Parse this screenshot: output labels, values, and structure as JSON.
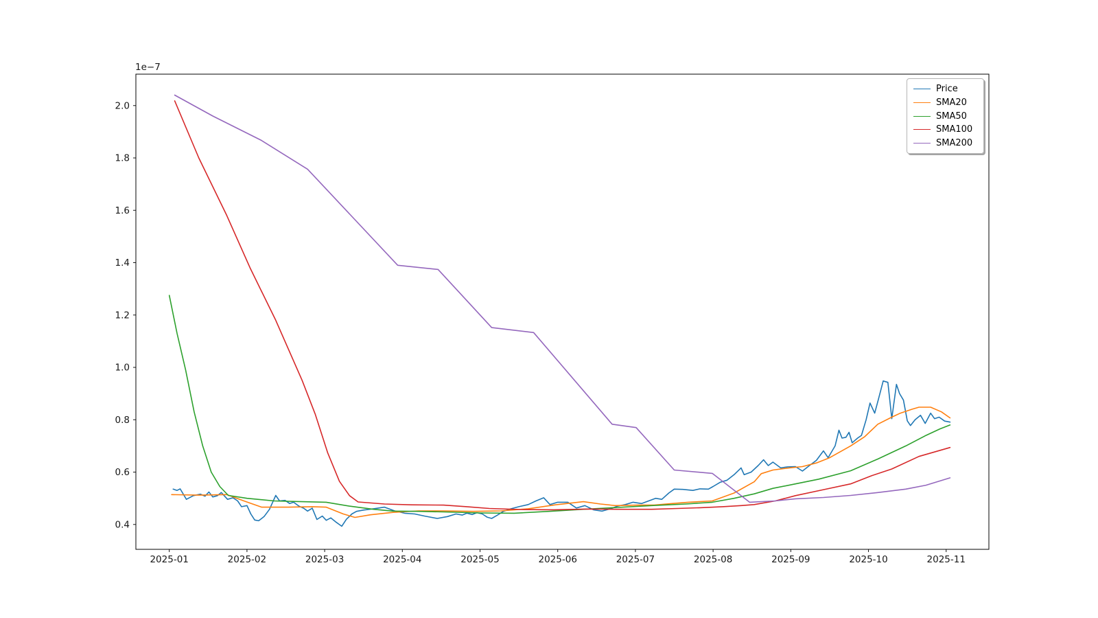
{
  "figure": {
    "background": "#ffffff"
  },
  "chart_data": {
    "type": "line",
    "title": "",
    "xlabel": "",
    "ylabel": "",
    "y_offset_label": "1e−7",
    "grid": false,
    "legend_position": "upper right",
    "x_tick_positions": [
      0,
      1,
      2,
      3,
      4,
      5,
      6,
      7,
      8,
      9,
      10
    ],
    "x_tick_labels": [
      "2025-01",
      "2025-02",
      "2025-03",
      "2025-04",
      "2025-05",
      "2025-06",
      "2025-07",
      "2025-08",
      "2025-09",
      "2025-10",
      "2025-11"
    ],
    "y_tick_values": [
      0.4,
      0.6,
      0.8,
      1.0,
      1.2,
      1.4,
      1.6,
      1.8,
      2.0
    ],
    "y_tick_labels": [
      "0.4",
      "0.6",
      "0.8",
      "1.0",
      "1.2",
      "1.4",
      "1.6",
      "1.8",
      "2.0"
    ],
    "xlim": [
      -0.43,
      10.55
    ],
    "ylim": [
      0.305,
      2.12
    ],
    "x_unit": "months since 2025-01 tick",
    "value_scale": "1e-7",
    "series": [
      {
        "name": "Price",
        "color": "#1f77b4",
        "points": [
          [
            0.05,
            0.535
          ],
          [
            0.1,
            0.53
          ],
          [
            0.14,
            0.536
          ],
          [
            0.22,
            0.496
          ],
          [
            0.31,
            0.51
          ],
          [
            0.4,
            0.516
          ],
          [
            0.46,
            0.508
          ],
          [
            0.51,
            0.524
          ],
          [
            0.56,
            0.505
          ],
          [
            0.62,
            0.51
          ],
          [
            0.67,
            0.522
          ],
          [
            0.75,
            0.496
          ],
          [
            0.82,
            0.502
          ],
          [
            0.88,
            0.49
          ],
          [
            0.93,
            0.468
          ],
          [
            1.0,
            0.472
          ],
          [
            1.05,
            0.44
          ],
          [
            1.1,
            0.417
          ],
          [
            1.15,
            0.414
          ],
          [
            1.22,
            0.43
          ],
          [
            1.29,
            0.458
          ],
          [
            1.37,
            0.511
          ],
          [
            1.42,
            0.49
          ],
          [
            1.49,
            0.492
          ],
          [
            1.55,
            0.48
          ],
          [
            1.6,
            0.485
          ],
          [
            1.67,
            0.47
          ],
          [
            1.73,
            0.462
          ],
          [
            1.78,
            0.451
          ],
          [
            1.84,
            0.462
          ],
          [
            1.9,
            0.419
          ],
          [
            1.97,
            0.432
          ],
          [
            2.02,
            0.416
          ],
          [
            2.08,
            0.425
          ],
          [
            2.15,
            0.408
          ],
          [
            2.22,
            0.393
          ],
          [
            2.28,
            0.42
          ],
          [
            2.35,
            0.44
          ],
          [
            2.41,
            0.45
          ],
          [
            2.5,
            0.455
          ],
          [
            2.63,
            0.46
          ],
          [
            2.77,
            0.466
          ],
          [
            2.9,
            0.452
          ],
          [
            3.03,
            0.443
          ],
          [
            3.16,
            0.44
          ],
          [
            3.29,
            0.432
          ],
          [
            3.45,
            0.423
          ],
          [
            3.58,
            0.43
          ],
          [
            3.69,
            0.44
          ],
          [
            3.77,
            0.436
          ],
          [
            3.83,
            0.443
          ],
          [
            3.9,
            0.438
          ],
          [
            3.96,
            0.445
          ],
          [
            4.03,
            0.44
          ],
          [
            4.09,
            0.428
          ],
          [
            4.15,
            0.423
          ],
          [
            4.22,
            0.435
          ],
          [
            4.3,
            0.45
          ],
          [
            4.4,
            0.46
          ],
          [
            4.5,
            0.468
          ],
          [
            4.62,
            0.476
          ],
          [
            4.72,
            0.49
          ],
          [
            4.82,
            0.502
          ],
          [
            4.9,
            0.476
          ],
          [
            5.0,
            0.485
          ],
          [
            5.13,
            0.485
          ],
          [
            5.24,
            0.463
          ],
          [
            5.35,
            0.472
          ],
          [
            5.46,
            0.456
          ],
          [
            5.57,
            0.451
          ],
          [
            5.68,
            0.46
          ],
          [
            5.77,
            0.47
          ],
          [
            5.87,
            0.476
          ],
          [
            5.97,
            0.485
          ],
          [
            6.08,
            0.48
          ],
          [
            6.17,
            0.49
          ],
          [
            6.26,
            0.5
          ],
          [
            6.34,
            0.496
          ],
          [
            6.43,
            0.52
          ],
          [
            6.5,
            0.535
          ],
          [
            6.61,
            0.534
          ],
          [
            6.74,
            0.53
          ],
          [
            6.83,
            0.536
          ],
          [
            6.94,
            0.535
          ],
          [
            7.0,
            0.545
          ],
          [
            7.09,
            0.561
          ],
          [
            7.18,
            0.569
          ],
          [
            7.27,
            0.59
          ],
          [
            7.36,
            0.616
          ],
          [
            7.4,
            0.59
          ],
          [
            7.49,
            0.6
          ],
          [
            7.58,
            0.625
          ],
          [
            7.65,
            0.647
          ],
          [
            7.71,
            0.625
          ],
          [
            7.77,
            0.638
          ],
          [
            7.87,
            0.616
          ],
          [
            7.96,
            0.62
          ],
          [
            8.06,
            0.621
          ],
          [
            8.15,
            0.604
          ],
          [
            8.24,
            0.625
          ],
          [
            8.33,
            0.645
          ],
          [
            8.42,
            0.681
          ],
          [
            8.48,
            0.655
          ],
          [
            8.57,
            0.7
          ],
          [
            8.62,
            0.76
          ],
          [
            8.66,
            0.73
          ],
          [
            8.71,
            0.733
          ],
          [
            8.75,
            0.752
          ],
          [
            8.79,
            0.712
          ],
          [
            8.86,
            0.73
          ],
          [
            8.91,
            0.74
          ],
          [
            8.97,
            0.8
          ],
          [
            9.02,
            0.864
          ],
          [
            9.08,
            0.825
          ],
          [
            9.13,
            0.88
          ],
          [
            9.19,
            0.948
          ],
          [
            9.25,
            0.943
          ],
          [
            9.3,
            0.804
          ],
          [
            9.36,
            0.935
          ],
          [
            9.4,
            0.9
          ],
          [
            9.45,
            0.875
          ],
          [
            9.5,
            0.796
          ],
          [
            9.54,
            0.778
          ],
          [
            9.6,
            0.8
          ],
          [
            9.67,
            0.817
          ],
          [
            9.73,
            0.786
          ],
          [
            9.8,
            0.825
          ],
          [
            9.85,
            0.804
          ],
          [
            9.91,
            0.81
          ],
          [
            9.98,
            0.795
          ],
          [
            10.05,
            0.791
          ]
        ]
      },
      {
        "name": "SMA20",
        "color": "#ff7f0e",
        "points": [
          [
            0.03,
            0.514
          ],
          [
            0.38,
            0.512
          ],
          [
            0.74,
            0.514
          ],
          [
            0.96,
            0.49
          ],
          [
            1.19,
            0.466
          ],
          [
            1.53,
            0.466
          ],
          [
            1.84,
            0.468
          ],
          [
            2.02,
            0.466
          ],
          [
            2.24,
            0.44
          ],
          [
            2.39,
            0.427
          ],
          [
            2.59,
            0.437
          ],
          [
            2.88,
            0.446
          ],
          [
            3.21,
            0.452
          ],
          [
            3.53,
            0.452
          ],
          [
            3.91,
            0.45
          ],
          [
            4.27,
            0.452
          ],
          [
            4.62,
            0.46
          ],
          [
            4.97,
            0.475
          ],
          [
            5.33,
            0.487
          ],
          [
            5.55,
            0.478
          ],
          [
            5.74,
            0.472
          ],
          [
            6.03,
            0.474
          ],
          [
            6.24,
            0.474
          ],
          [
            6.47,
            0.48
          ],
          [
            6.68,
            0.485
          ],
          [
            6.99,
            0.49
          ],
          [
            7.27,
            0.52
          ],
          [
            7.53,
            0.563
          ],
          [
            7.62,
            0.594
          ],
          [
            7.77,
            0.608
          ],
          [
            7.98,
            0.616
          ],
          [
            8.15,
            0.621
          ],
          [
            8.33,
            0.635
          ],
          [
            8.5,
            0.655
          ],
          [
            8.77,
            0.7
          ],
          [
            8.95,
            0.735
          ],
          [
            9.12,
            0.783
          ],
          [
            9.3,
            0.81
          ],
          [
            9.41,
            0.825
          ],
          [
            9.56,
            0.84
          ],
          [
            9.65,
            0.848
          ],
          [
            9.8,
            0.848
          ],
          [
            9.94,
            0.83
          ],
          [
            10.05,
            0.807
          ]
        ]
      },
      {
        "name": "SMA50",
        "color": "#2ca02c",
        "points": [
          [
            0.0,
            1.275
          ],
          [
            0.1,
            1.13
          ],
          [
            0.21,
            0.99
          ],
          [
            0.32,
            0.83
          ],
          [
            0.43,
            0.7
          ],
          [
            0.54,
            0.6
          ],
          [
            0.65,
            0.545
          ],
          [
            0.76,
            0.511
          ],
          [
            1.0,
            0.5
          ],
          [
            1.35,
            0.49
          ],
          [
            1.71,
            0.487
          ],
          [
            2.02,
            0.485
          ],
          [
            2.32,
            0.47
          ],
          [
            2.63,
            0.458
          ],
          [
            2.88,
            0.451
          ],
          [
            3.21,
            0.45
          ],
          [
            3.53,
            0.448
          ],
          [
            4.0,
            0.444
          ],
          [
            4.44,
            0.443
          ],
          [
            4.89,
            0.45
          ],
          [
            5.33,
            0.458
          ],
          [
            5.77,
            0.465
          ],
          [
            6.21,
            0.472
          ],
          [
            6.65,
            0.478
          ],
          [
            6.99,
            0.485
          ],
          [
            7.27,
            0.5
          ],
          [
            7.53,
            0.517
          ],
          [
            7.77,
            0.538
          ],
          [
            8.06,
            0.555
          ],
          [
            8.36,
            0.573
          ],
          [
            8.77,
            0.605
          ],
          [
            9.12,
            0.65
          ],
          [
            9.48,
            0.7
          ],
          [
            9.74,
            0.74
          ],
          [
            9.92,
            0.765
          ],
          [
            10.05,
            0.78
          ]
        ]
      },
      {
        "name": "SMA100",
        "color": "#d62728",
        "points": [
          [
            0.07,
            2.018
          ],
          [
            0.38,
            1.8
          ],
          [
            0.74,
            1.58
          ],
          [
            1.04,
            1.38
          ],
          [
            1.37,
            1.18
          ],
          [
            1.71,
            0.95
          ],
          [
            1.88,
            0.82
          ],
          [
            2.04,
            0.673
          ],
          [
            2.19,
            0.565
          ],
          [
            2.32,
            0.51
          ],
          [
            2.43,
            0.486
          ],
          [
            2.77,
            0.478
          ],
          [
            3.12,
            0.475
          ],
          [
            3.53,
            0.474
          ],
          [
            3.83,
            0.468
          ],
          [
            4.12,
            0.461
          ],
          [
            4.53,
            0.457
          ],
          [
            4.95,
            0.456
          ],
          [
            5.39,
            0.459
          ],
          [
            5.77,
            0.458
          ],
          [
            6.21,
            0.458
          ],
          [
            6.54,
            0.461
          ],
          [
            6.83,
            0.464
          ],
          [
            7.12,
            0.468
          ],
          [
            7.36,
            0.472
          ],
          [
            7.53,
            0.476
          ],
          [
            7.8,
            0.49
          ],
          [
            8.06,
            0.51
          ],
          [
            8.42,
            0.533
          ],
          [
            8.77,
            0.555
          ],
          [
            9.03,
            0.585
          ],
          [
            9.3,
            0.612
          ],
          [
            9.65,
            0.66
          ],
          [
            10.05,
            0.694
          ]
        ]
      },
      {
        "name": "SMA200",
        "color": "#9467bd",
        "points": [
          [
            0.07,
            2.04
          ],
          [
            0.56,
            1.96
          ],
          [
            1.18,
            1.868
          ],
          [
            1.78,
            1.757
          ],
          [
            2.94,
            1.39
          ],
          [
            3.46,
            1.374
          ],
          [
            4.15,
            1.152
          ],
          [
            4.69,
            1.133
          ],
          [
            5.7,
            0.783
          ],
          [
            6.01,
            0.77
          ],
          [
            6.5,
            0.608
          ],
          [
            6.99,
            0.595
          ],
          [
            7.47,
            0.485
          ],
          [
            7.8,
            0.49
          ],
          [
            8.06,
            0.498
          ],
          [
            8.42,
            0.503
          ],
          [
            8.77,
            0.511
          ],
          [
            9.12,
            0.522
          ],
          [
            9.48,
            0.535
          ],
          [
            9.74,
            0.55
          ],
          [
            10.05,
            0.578
          ]
        ]
      }
    ]
  }
}
